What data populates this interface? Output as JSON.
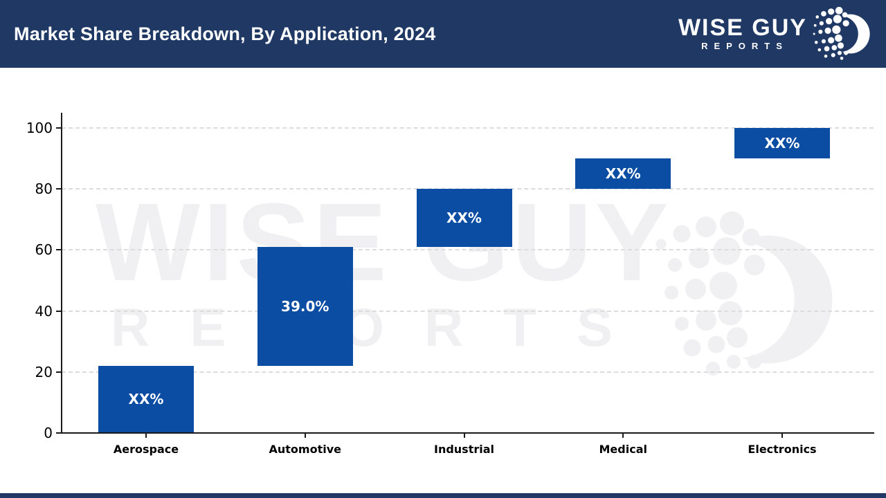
{
  "header": {
    "title": "Market Share Breakdown, By Application, 2024",
    "brand_line1": "WISE GUY",
    "brand_line2": "REPORTS"
  },
  "watermark": {
    "line1": "WISE GUY",
    "line2": "REPORTS"
  },
  "colors": {
    "header_bg": "#1f3864",
    "footer_bg": "#1f3864",
    "bar": "#0b4da2",
    "bar_label": "#ffffff",
    "gridline": "#dcdcdc",
    "axis": "#1a1a1a",
    "watermark": "#f0f0f2"
  },
  "chart_data": {
    "type": "bar",
    "subtype": "waterfall",
    "title": "Market Share Breakdown, By Application, 2024",
    "categories": [
      "Aerospace",
      "Automotive",
      "Industrial",
      "Medical",
      "Electronics"
    ],
    "bars": [
      {
        "category": "Aerospace",
        "start": 0,
        "end": 22,
        "label": "XX%"
      },
      {
        "category": "Automotive",
        "start": 22,
        "end": 61,
        "label": "39.0%"
      },
      {
        "category": "Industrial",
        "start": 61,
        "end": 80,
        "label": "XX%"
      },
      {
        "category": "Medical",
        "start": 80,
        "end": 90,
        "label": "XX%"
      },
      {
        "category": "Electronics",
        "start": 90,
        "end": 100,
        "label": "XX%"
      }
    ],
    "xlabel": "",
    "ylabel": "",
    "ylim": [
      0,
      105
    ],
    "yticks": [
      0,
      20,
      40,
      60,
      80,
      100
    ],
    "grid": "dashed-horizontal",
    "legend": "none"
  }
}
